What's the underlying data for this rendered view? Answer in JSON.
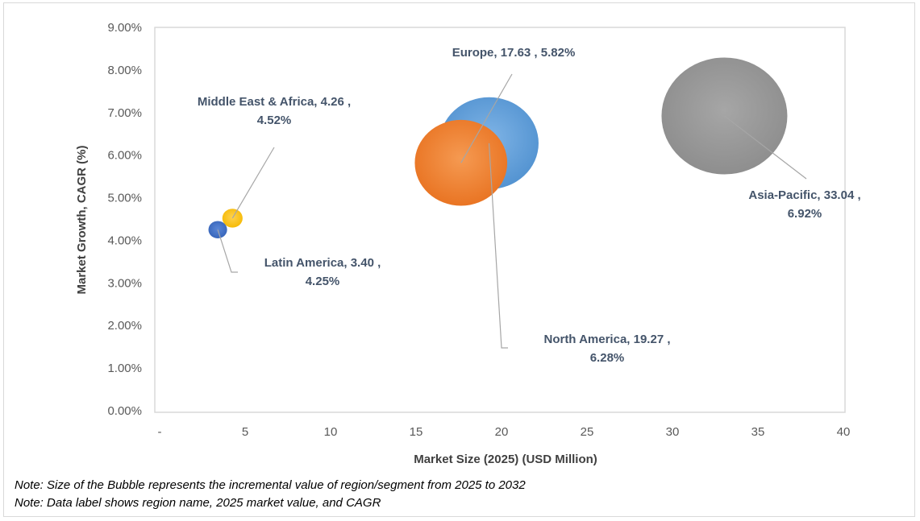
{
  "chart_data": {
    "type": "bubble",
    "xlabel": "Market Size (2025) (USD Million)",
    "ylabel": "Market Growth, CAGR (%)",
    "xlim": [
      0,
      40
    ],
    "ylim": [
      0,
      9
    ],
    "x_ticks": [
      "-",
      "5",
      "10",
      "15",
      "20",
      "25",
      "30",
      "35",
      "40"
    ],
    "y_ticks": [
      "0.00%",
      "1.00%",
      "2.00%",
      "3.00%",
      "4.00%",
      "5.00%",
      "6.00%",
      "7.00%",
      "8.00%",
      "9.00%"
    ],
    "grid": false,
    "series": [
      {
        "name": "Asia-Pacific",
        "x": 33.04,
        "y": 6.92,
        "size": 1.0,
        "color": "#8c8c8c",
        "label_lines": [
          "Asia-Pacific,  33.04 ,",
          "6.92%"
        ]
      },
      {
        "name": "North America",
        "x": 19.27,
        "y": 6.28,
        "size": 0.62,
        "color": "#5b9bd5",
        "label_lines": [
          "North America,  19.27 ,",
          "6.28%"
        ]
      },
      {
        "name": "Europe",
        "x": 17.63,
        "y": 5.82,
        "size": 0.54,
        "color": "#ed7d31",
        "label_lines": [
          "Europe,  17.63 , 5.82%"
        ]
      },
      {
        "name": "Middle East & Africa",
        "x": 4.26,
        "y": 4.52,
        "size": 0.026,
        "color": "#ffc000",
        "label_lines": [
          "Middle East & Africa,  4.26 ,",
          "4.52%"
        ]
      },
      {
        "name": "Latin America",
        "x": 3.4,
        "y": 4.25,
        "size": 0.022,
        "color": "#4472c4",
        "label_lines": [
          "Latin America,  3.40 ,",
          "4.25%"
        ]
      }
    ]
  },
  "notes": [
    "Note: Size of the Bubble represents the incremental value of region/segment from 2025 to 2032",
    "Note: Data label shows region name, 2025 market value, and CAGR"
  ]
}
